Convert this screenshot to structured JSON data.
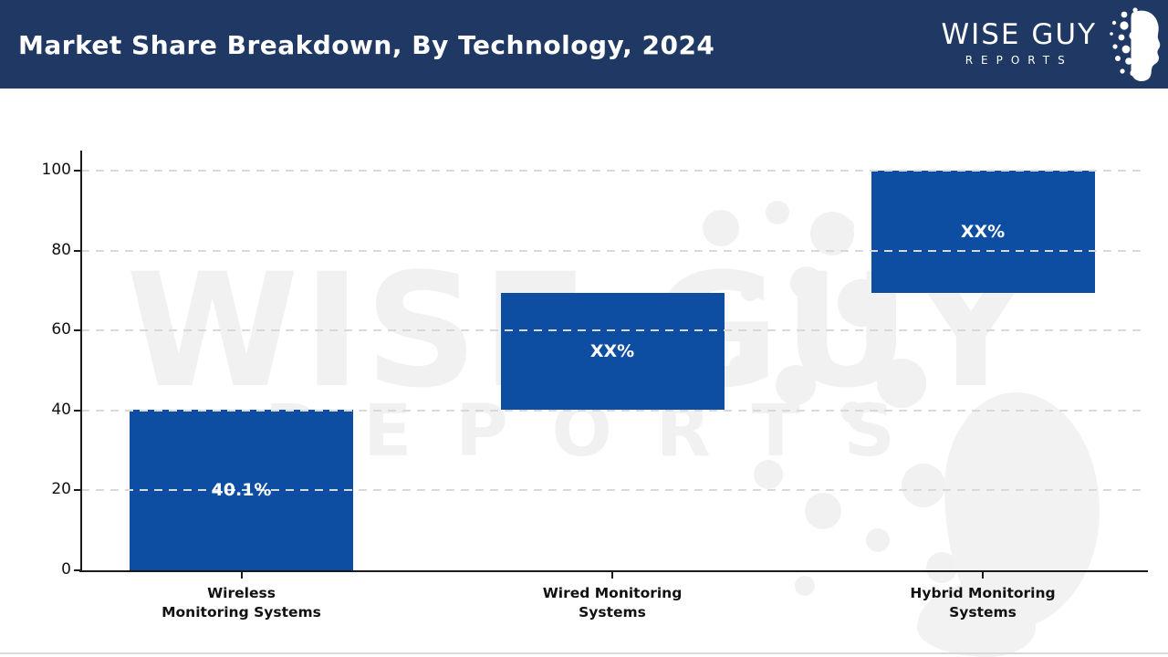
{
  "header": {
    "title": "Market Share Breakdown, By Technology, 2024",
    "bg_color": "#1f3864",
    "logo": {
      "line1": "WISE GUY",
      "line2": "REPORTS"
    }
  },
  "watermark": {
    "line1": "WISE GUY",
    "line2": "REPORTS"
  },
  "chart_data": {
    "type": "bar",
    "variant": "waterfall-segment-bars",
    "title": "Market Share Breakdown, By Technology, 2024",
    "categories": [
      {
        "lines": [
          "Wireless",
          "Monitoring Systems"
        ]
      },
      {
        "lines": [
          "Wired Monitoring",
          "Systems"
        ]
      },
      {
        "lines": [
          "Hybrid Monitoring",
          "Systems"
        ]
      }
    ],
    "segments": [
      {
        "category": "Wireless Monitoring Systems",
        "start": 0,
        "end": 40.1,
        "label": "40.1%"
      },
      {
        "category": "Wired Monitoring Systems",
        "start": 40.1,
        "end": 69.4,
        "label": "XX%"
      },
      {
        "category": "Hybrid Monitoring Systems",
        "start": 69.4,
        "end": 100,
        "label": "XX%"
      }
    ],
    "yticks": [
      0,
      20,
      40,
      60,
      80,
      100
    ],
    "ylim": [
      0,
      105
    ],
    "xlabel": "",
    "ylabel": "",
    "grid": true,
    "grid_style": "dashed",
    "grid_color": "#d9d9d9",
    "bar_color": "#0d4da2",
    "axis_color": "#1a1a1a",
    "legend": "none"
  }
}
